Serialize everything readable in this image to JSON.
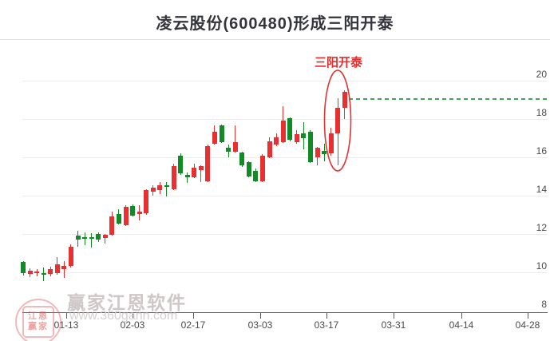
{
  "title": "凌云股份(600480)形成三阳开泰",
  "annotation": {
    "label": "三阳开泰"
  },
  "watermark": {
    "brand": "赢家江恩软件",
    "url": "www.360gann.com",
    "stamp_line1": "江恩",
    "stamp_line2": "赢家"
  },
  "colors": {
    "up": "#e93030",
    "down": "#128a26",
    "reference": "#44a34e",
    "highlight": "#e23333"
  },
  "chart_data": {
    "type": "candlestick",
    "title": "凌云股份(600480)形成三阳开泰",
    "x_labels": [
      "01-13",
      "02-03",
      "02-17",
      "03-03",
      "03-17",
      "03-31",
      "04-14",
      "04-28"
    ],
    "y_ticks": [
      20,
      18,
      16,
      14,
      12,
      10,
      8
    ],
    "ylim": [
      8,
      20.8
    ],
    "grid": "horizontal-only",
    "reference_line": {
      "value": 19.05,
      "style": "dashed"
    },
    "highlight": {
      "label": "三阳开泰",
      "candle_indices": [
        45,
        46,
        47
      ]
    },
    "candles": [
      [
        10.55,
        10.6,
        9.85,
        9.95
      ],
      [
        9.9,
        10.2,
        9.75,
        10.1
      ],
      [
        9.95,
        10.15,
        9.8,
        10.05
      ],
      [
        9.95,
        10.25,
        9.55,
        9.9
      ],
      [
        9.9,
        10.3,
        9.8,
        10.15
      ],
      [
        9.95,
        10.8,
        9.88,
        10.4
      ],
      [
        10.15,
        10.6,
        9.7,
        10.35
      ],
      [
        10.35,
        11.45,
        10.25,
        11.35
      ],
      [
        11.9,
        12.15,
        11.35,
        11.7
      ],
      [
        11.85,
        12.1,
        11.4,
        11.78
      ],
      [
        11.82,
        12.05,
        11.3,
        11.75
      ],
      [
        12.0,
        12.1,
        11.6,
        11.7
      ],
      [
        11.8,
        12.0,
        11.5,
        11.95
      ],
      [
        11.95,
        13.15,
        11.9,
        12.9
      ],
      [
        13.05,
        13.3,
        12.5,
        12.55
      ],
      [
        12.45,
        13.5,
        12.4,
        13.4
      ],
      [
        13.45,
        13.55,
        12.9,
        12.95
      ],
      [
        13.05,
        13.5,
        12.7,
        13.15
      ],
      [
        13.1,
        14.35,
        13.0,
        14.3
      ],
      [
        14.2,
        14.55,
        14.0,
        14.4
      ],
      [
        14.3,
        14.7,
        14.1,
        14.55
      ],
      [
        14.55,
        14.7,
        13.95,
        14.45
      ],
      [
        14.35,
        15.65,
        14.3,
        15.55
      ],
      [
        16.1,
        16.2,
        15.1,
        15.15
      ],
      [
        15.1,
        15.2,
        14.65,
        14.95
      ],
      [
        14.95,
        15.65,
        14.9,
        15.45
      ],
      [
        15.35,
        15.6,
        14.7,
        15.55
      ],
      [
        14.75,
        16.65,
        14.7,
        16.6
      ],
      [
        16.7,
        17.65,
        16.65,
        17.35
      ],
      [
        17.65,
        17.7,
        16.75,
        16.8
      ],
      [
        16.5,
        16.65,
        16.0,
        16.3
      ],
      [
        16.3,
        17.65,
        16.25,
        16.8
      ],
      [
        16.25,
        16.3,
        15.5,
        15.6
      ],
      [
        15.75,
        15.8,
        14.95,
        15.0
      ],
      [
        15.3,
        15.4,
        14.7,
        14.75
      ],
      [
        14.75,
        16.15,
        14.7,
        16.1
      ],
      [
        16.0,
        17.05,
        15.95,
        16.85
      ],
      [
        16.65,
        17.25,
        16.6,
        17.05
      ],
      [
        16.8,
        18.65,
        16.75,
        17.9
      ],
      [
        18.05,
        18.1,
        16.85,
        16.9
      ],
      [
        16.8,
        17.4,
        16.7,
        17.2
      ],
      [
        17.25,
        17.85,
        16.4,
        17.0
      ],
      [
        17.35,
        17.4,
        15.7,
        15.75
      ],
      [
        16.0,
        16.55,
        15.6,
        16.5
      ],
      [
        16.35,
        16.7,
        15.8,
        16.15
      ],
      [
        16.2,
        17.55,
        16.1,
        17.25
      ],
      [
        17.25,
        19.1,
        15.6,
        18.6
      ],
      [
        18.6,
        19.5,
        18.0,
        19.4
      ]
    ]
  }
}
